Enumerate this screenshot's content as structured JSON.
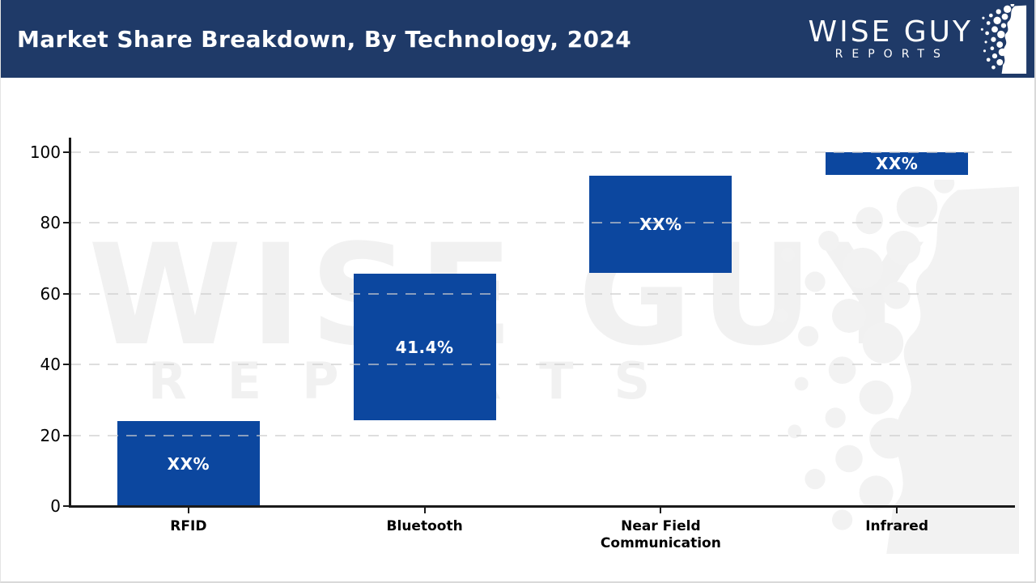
{
  "header": {
    "title": "Market Share Breakdown, By Technology, 2024",
    "logo": {
      "line1": "WISE GUY",
      "line2": "REPORTS"
    },
    "bg_color": "#1f3a68"
  },
  "watermark": {
    "line1": "WISE GUY",
    "line2": "REPORTS"
  },
  "chart_data": {
    "type": "bar",
    "subtype": "waterfall",
    "title": "Market Share Breakdown, By Technology, 2024",
    "xlabel": "",
    "ylabel": "",
    "ylim": [
      0,
      100
    ],
    "yticks": [
      0,
      20,
      40,
      60,
      80,
      100
    ],
    "grid": "horizontal-dashed",
    "legend": "none",
    "categories": [
      "RFID",
      "Bluetooth",
      "Near Field Communication",
      "Infrared"
    ],
    "segments": [
      {
        "category": "RFID",
        "start": 0,
        "end": 24,
        "label": "XX%"
      },
      {
        "category": "Bluetooth",
        "start": 24.2,
        "end": 65.6,
        "label": "41.4%"
      },
      {
        "category": "Near Field Communication",
        "start": 65.8,
        "end": 93.2,
        "label": "XX%"
      },
      {
        "category": "Infrared",
        "start": 93.6,
        "end": 100,
        "label": "XX%"
      }
    ],
    "colors": {
      "bar": "#0c479f",
      "grid": "#d9d9d9",
      "axis": "#1a1a1a",
      "watermark": "#f1f1f1",
      "header_bg": "#1f3a68",
      "label_text": "#ffffff"
    }
  }
}
